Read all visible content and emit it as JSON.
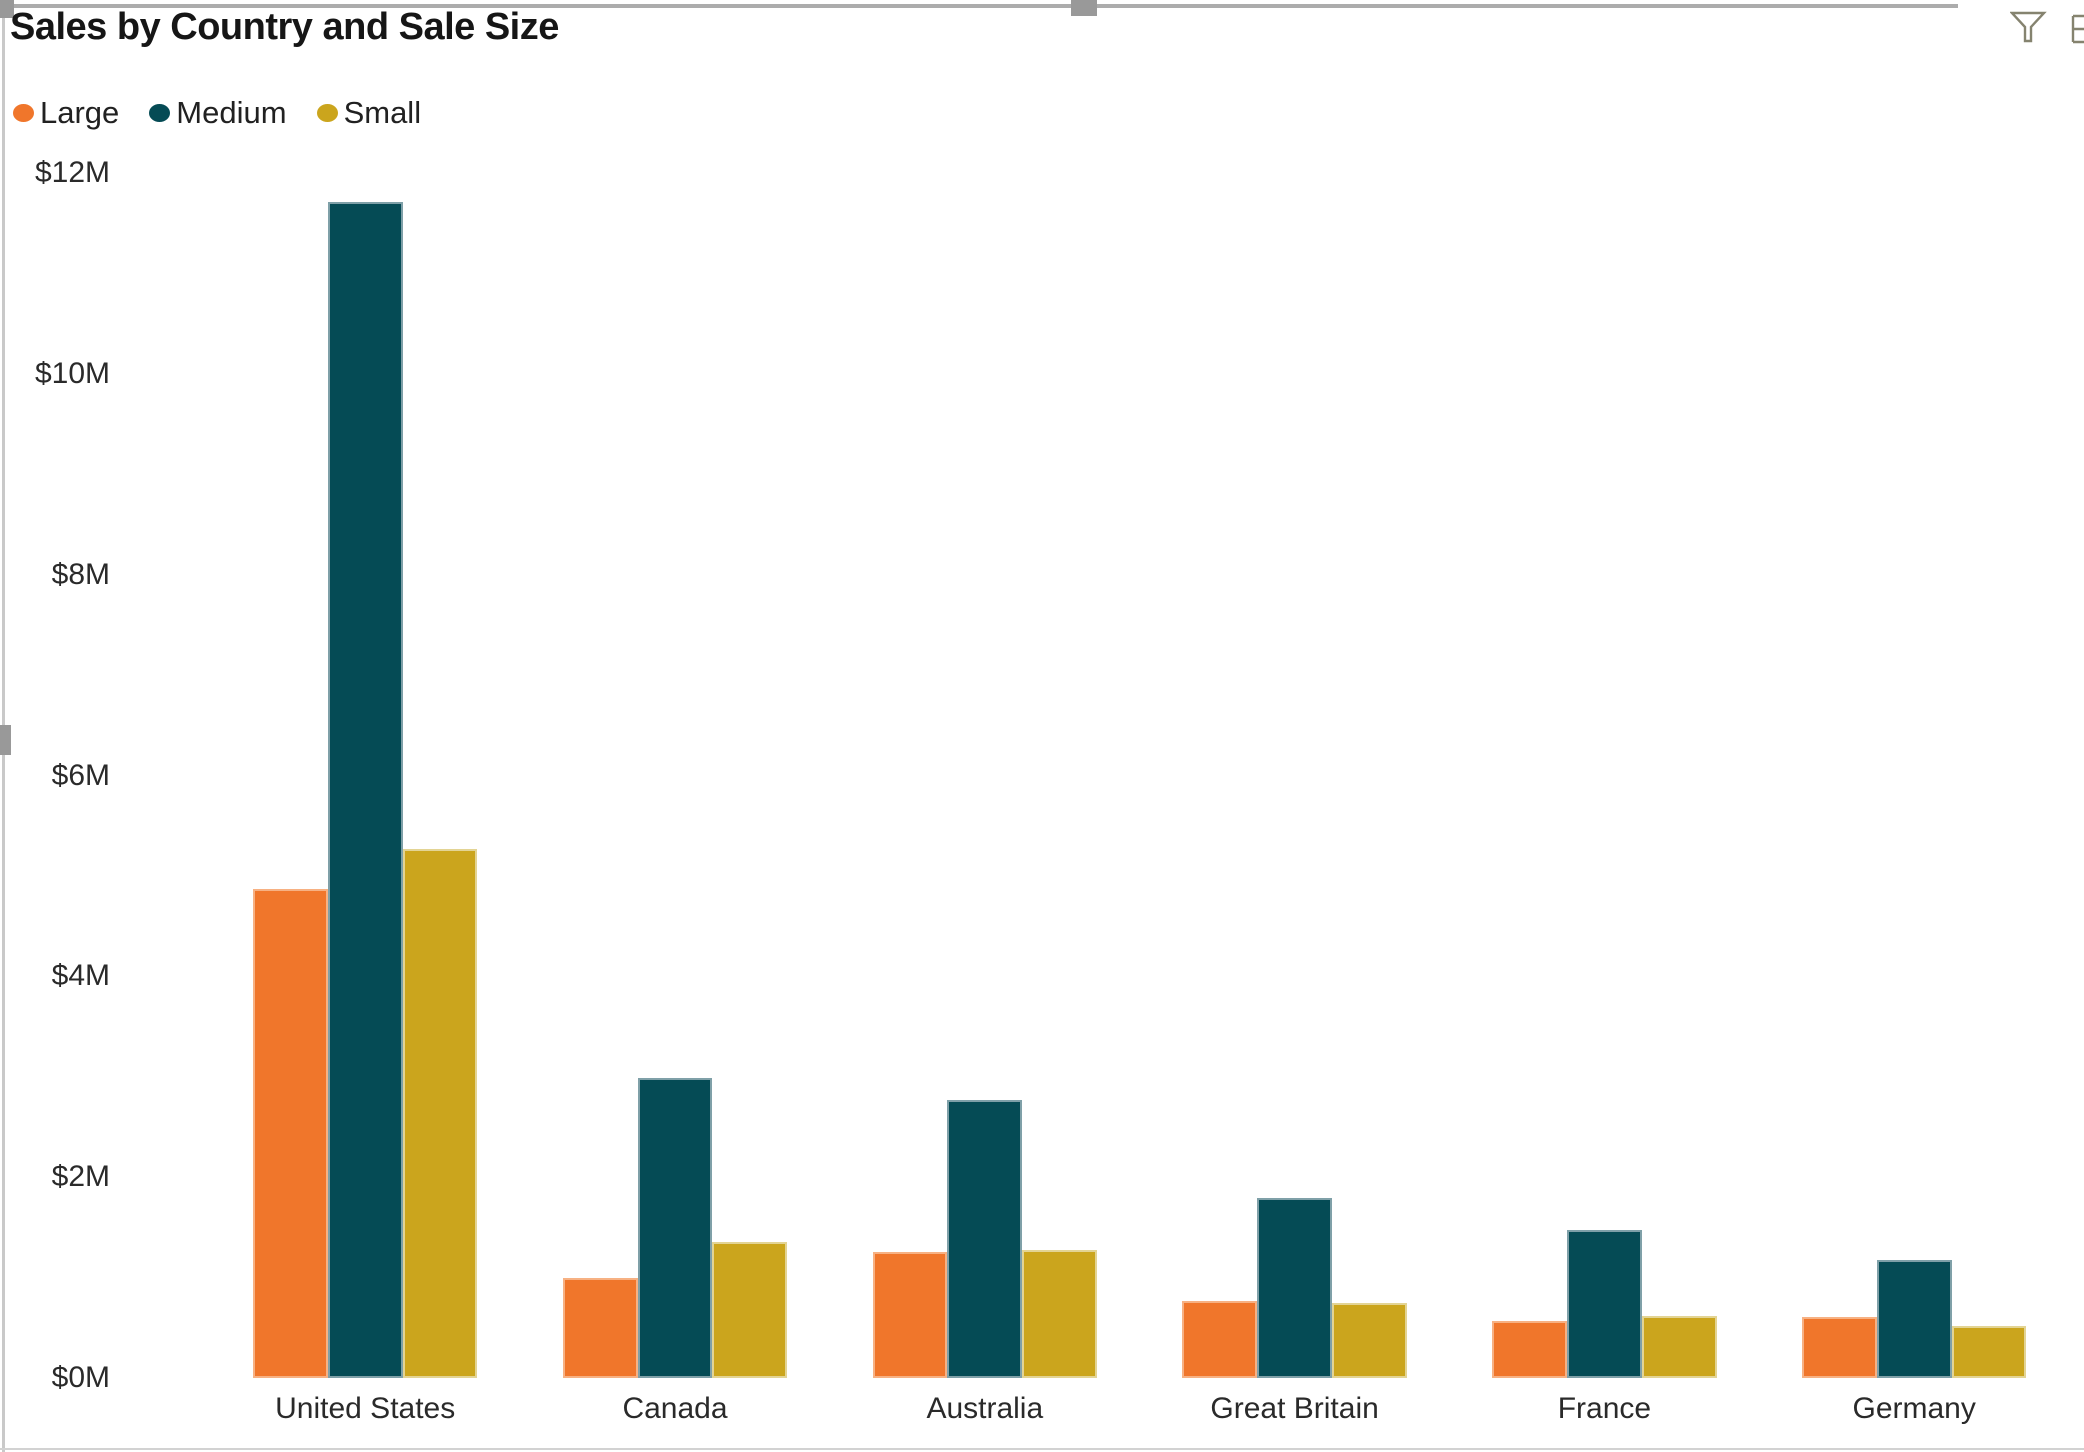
{
  "visual": {
    "header_icons": [
      {
        "name": "filter-icon"
      },
      {
        "name": "clipped-edge-icon"
      }
    ],
    "icon_color": "#85836F",
    "chrome_color": "#ACACAC"
  },
  "chart_data": {
    "type": "bar",
    "title": "Sales by Country and Sale Size",
    "categories": [
      "United States",
      "Canada",
      "Australia",
      "Great Britain",
      "France",
      "Germany"
    ],
    "series": [
      {
        "name": "Large",
        "color": "#F0762B",
        "border_color": "#F7B183",
        "values": [
          4.87,
          1.0,
          1.25,
          0.77,
          0.57,
          0.61
        ]
      },
      {
        "name": "Medium",
        "color": "#054B55",
        "border_color": "#7FA0A8",
        "values": [
          11.71,
          2.99,
          2.77,
          1.79,
          1.47,
          1.18
        ]
      },
      {
        "name": "Small",
        "color": "#CBA51D",
        "border_color": "#E3D494",
        "values": [
          5.27,
          1.35,
          1.27,
          0.75,
          0.62,
          0.52
        ]
      }
    ],
    "y_ticks": [
      "$0M",
      "$2M",
      "$4M",
      "$6M",
      "$8M",
      "$10M",
      "$12M"
    ],
    "ylim": [
      0,
      12
    ],
    "grid": false,
    "legend_position": "top-left",
    "xlabel": "",
    "ylabel": ""
  }
}
